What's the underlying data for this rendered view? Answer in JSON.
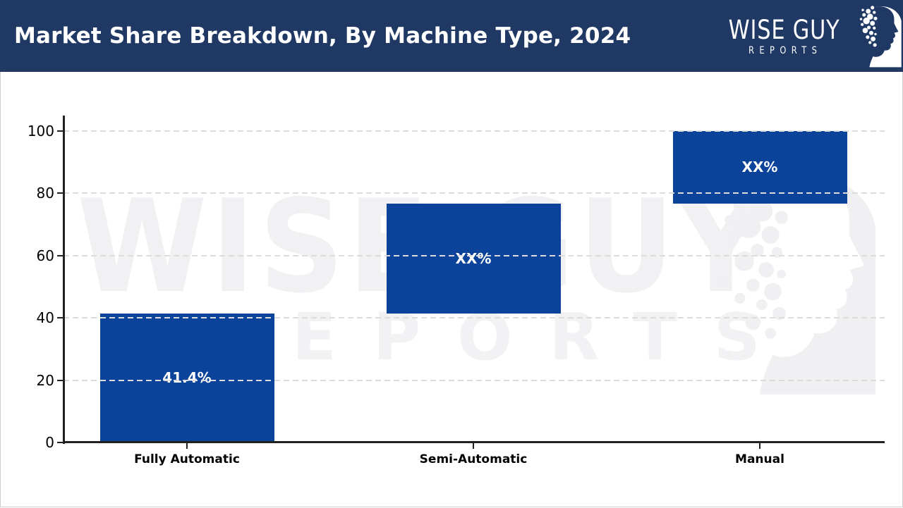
{
  "header": {
    "title": "Market Share Breakdown, By Machine Type, 2024"
  },
  "logo": {
    "wordmark": "WISE GUY",
    "subtext": "REPORTS",
    "face_icon": "dotted-face-profile"
  },
  "watermark": {
    "wordmark": "WISE GUY",
    "subtext": "REPORTS"
  },
  "colors": {
    "header_bg": "#1f3864",
    "bar": "#0a4399",
    "grid": "#dcdcdc",
    "axis": "#212121",
    "bar_label": "#ffffff",
    "watermark": "#f1f1f4"
  },
  "chart_data": {
    "type": "bar",
    "subtype": "waterfall",
    "title": "Market Share Breakdown, By Machine Type, 2024",
    "categories": [
      "Fully Automatic",
      "Semi-Automatic",
      "Manual"
    ],
    "segments": [
      {
        "category": "Fully Automatic",
        "label": "41.4%",
        "start": 0,
        "end": 41.4
      },
      {
        "category": "Semi-Automatic",
        "label": "XX%",
        "start": 41.4,
        "end": 76.7
      },
      {
        "category": "Manual",
        "label": "XX%",
        "start": 76.7,
        "end": 100
      }
    ],
    "xlabel": "",
    "ylabel": "",
    "yticks": [
      0,
      20,
      40,
      60,
      80,
      100
    ],
    "ylim": [
      0,
      105
    ],
    "grid": "horizontal-dashed",
    "legend": "none",
    "bar_color": "#0a4399",
    "value_label_color": "#ffffff"
  }
}
